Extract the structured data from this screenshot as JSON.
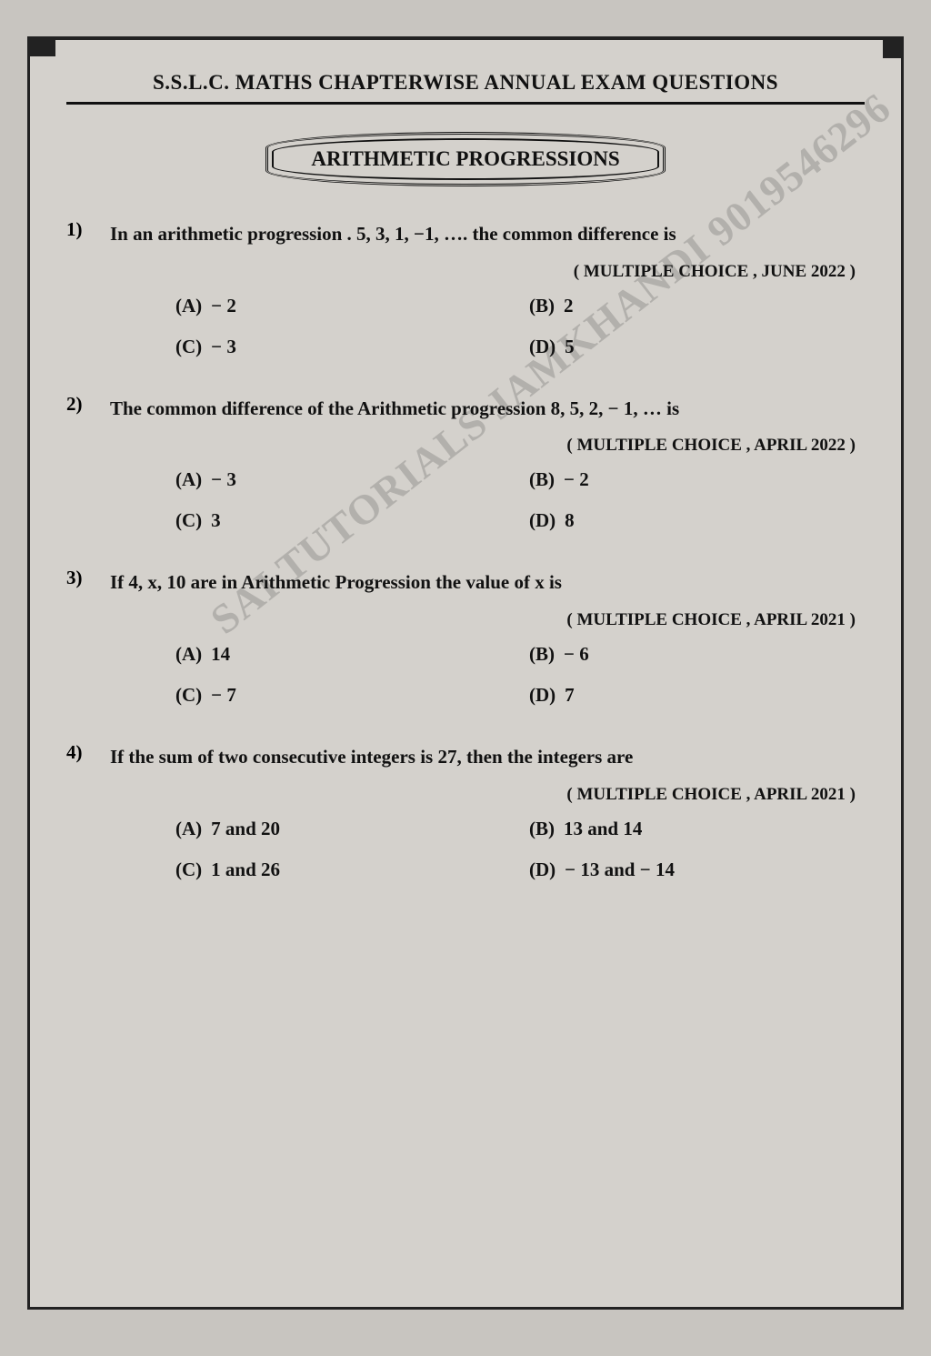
{
  "header": "S.S.L.C. MATHS CHAPTERWISE ANNUAL EXAM QUESTIONS",
  "chapter": "ARITHMETIC PROGRESSIONS",
  "watermark": "SAI TUTORIALS JAMKHANDI 9019546296",
  "questions": [
    {
      "num": "1)",
      "text": "In an arithmetic progression . 5, 3, 1, −1, …. the common difference is",
      "source": "( MULTIPLE CHOICE , JUNE 2022 )",
      "options": {
        "A": "− 2",
        "B": "2",
        "C": "− 3",
        "D": "5"
      }
    },
    {
      "num": "2)",
      "text": "The common difference of the Arithmetic progression 8, 5, 2, − 1, … is",
      "source": "( MULTIPLE CHOICE , APRIL 2022 )",
      "options": {
        "A": "− 3",
        "B": "− 2",
        "C": "3",
        "D": "8"
      }
    },
    {
      "num": "3)",
      "text": "If 4, x, 10 are in Arithmetic Progression the value of x is",
      "source": "( MULTIPLE CHOICE , APRIL 2021 )",
      "options": {
        "A": "14",
        "B": "− 6",
        "C": "− 7",
        "D": "7"
      }
    },
    {
      "num": "4)",
      "text": "If the sum of two consecutive integers is 27, then the integers are",
      "source": "( MULTIPLE CHOICE , APRIL 2021 )",
      "options": {
        "A": "7 and 20",
        "B": "13 and 14",
        "C": "1 and 26",
        "D": "− 13 and − 14"
      }
    }
  ],
  "labels": {
    "A": "(A)",
    "B": "(B)",
    "C": "(C)",
    "D": "(D)"
  }
}
